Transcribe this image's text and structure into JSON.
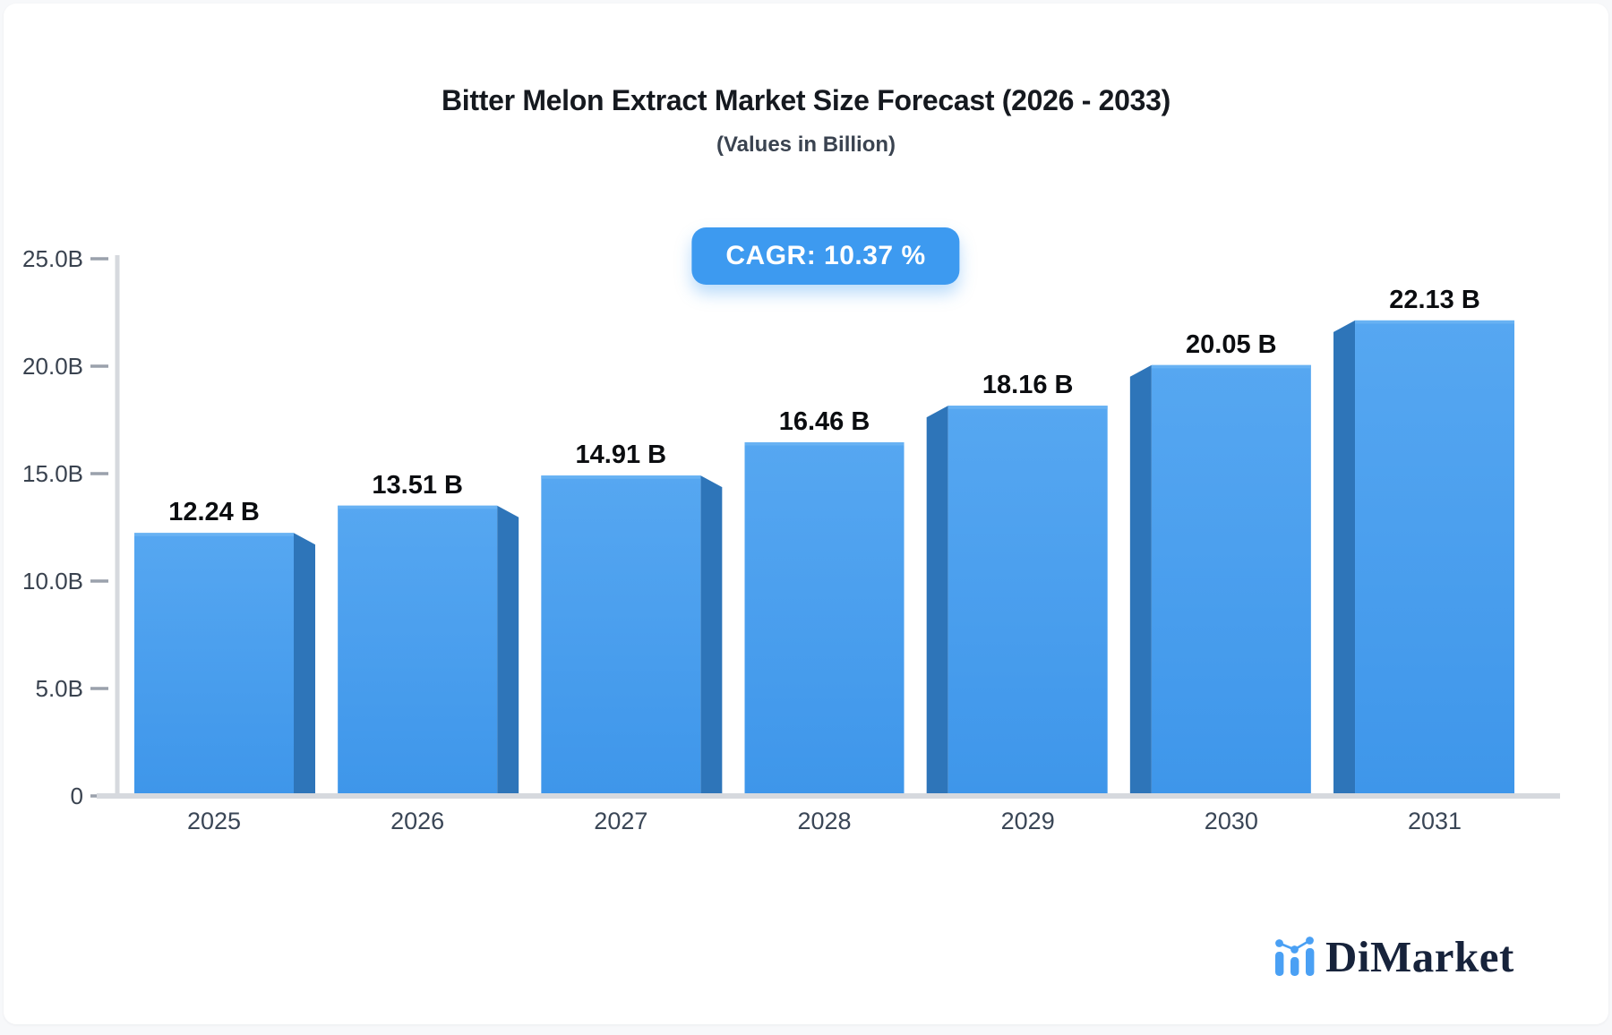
{
  "page": {
    "background_color": "#f7f8fa",
    "card_color": "#ffffff"
  },
  "chart_data": {
    "type": "bar",
    "title": "Bitter Melon Extract Market Size Forecast (2026 - 2033)",
    "subtitle": "(Values in Billion)",
    "annotation": {
      "text": "CAGR: 10.37 %",
      "background_color": "#3d9af0",
      "text_color": "#ffffff"
    },
    "categories": [
      "2025",
      "2026",
      "2027",
      "2028",
      "2029",
      "2030",
      "2031"
    ],
    "values": [
      12.24,
      13.51,
      14.91,
      16.46,
      18.16,
      20.05,
      22.13
    ],
    "value_labels": [
      "12.24 B",
      "13.51 B",
      "14.91 B",
      "16.46 B",
      "18.16 B",
      "20.05 B",
      "22.13 B"
    ],
    "xlabel": "",
    "ylabel": "",
    "ylim": [
      0,
      25
    ],
    "y_ticks": [
      {
        "value": 25,
        "label": "25.0B"
      },
      {
        "value": 20,
        "label": "20.0B"
      },
      {
        "value": 15,
        "label": "15.0B"
      },
      {
        "value": 10,
        "label": "10.0B"
      },
      {
        "value": 5,
        "label": "5.0B"
      },
      {
        "value": 0,
        "label": "0"
      }
    ],
    "grid": false,
    "legend": false,
    "bar_style": {
      "face_top_color": "#56a7f1",
      "face_bottom_color": "#3e96ea",
      "side_color": "#2e75b9",
      "top_edge_color": "#68b2f3"
    },
    "axis_color": "#d6d9de",
    "tick_color": "#9aa1ac",
    "tick_label_color": "#39424f",
    "value_label_color": "#0b0d10",
    "category_label_color": "#3a4656"
  },
  "branding": {
    "name": "DiMarket",
    "icon": "mini-bar-chart-icon",
    "icon_color": "#4aa0f4",
    "text_color": "#17233b"
  }
}
